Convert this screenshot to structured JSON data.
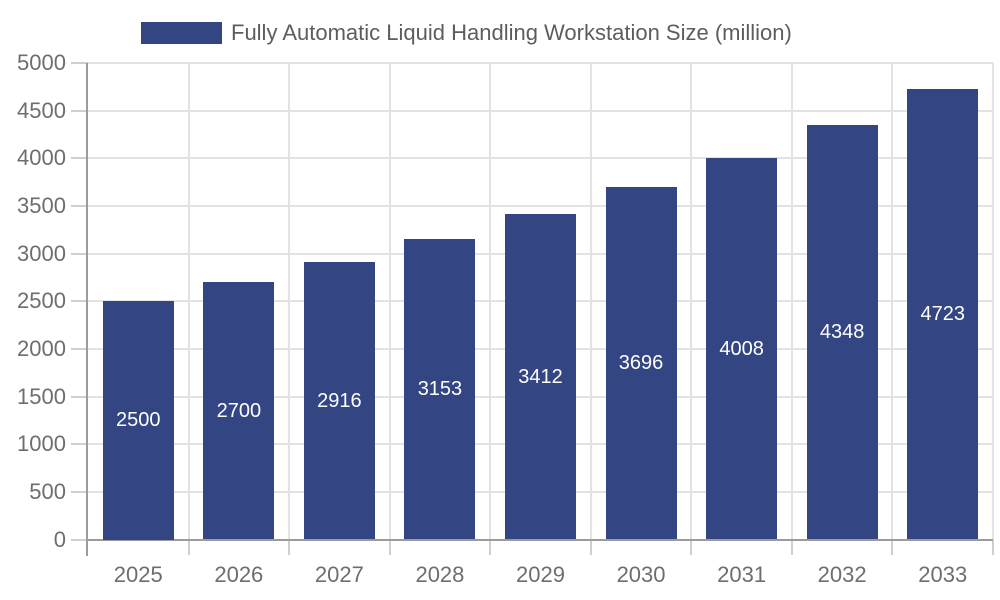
{
  "legend": {
    "label": "Fully Automatic Liquid Handling Workstation Size (million)"
  },
  "chart_data": {
    "type": "bar",
    "title": "",
    "xlabel": "",
    "ylabel": "",
    "categories": [
      "2025",
      "2026",
      "2027",
      "2028",
      "2029",
      "2030",
      "2031",
      "2032",
      "2033"
    ],
    "series": [
      {
        "name": "Fully Automatic Liquid Handling Workstation Size (million)",
        "values": [
          2500,
          2700,
          2916,
          3153,
          3412,
          3696,
          4008,
          4348,
          4723
        ]
      }
    ],
    "value_labels_shown": true,
    "ylim": [
      0,
      5000
    ],
    "ytick_step": 500,
    "grid": true,
    "legend_position": "top-center",
    "colors": {
      "bar": "#344584",
      "grid": "#e3e3e3",
      "axis_line": "#9b9b9b",
      "tick": "#cfcfcf",
      "axis_label": "#6e6e6e",
      "legend_text": "#5d5d5d",
      "value_label": "#ffffff",
      "background": "#ffffff"
    }
  }
}
